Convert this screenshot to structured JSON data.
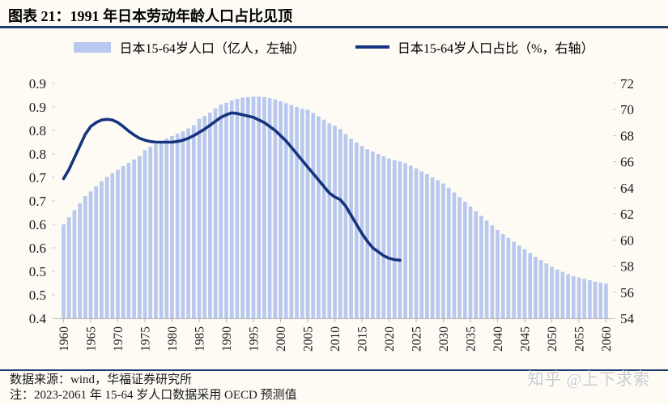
{
  "header": {
    "title": "图表 21：1991 年日本劳动年龄人口占比见顶"
  },
  "legend": [
    {
      "series": "bars",
      "label": "日本15-64岁人口（亿人，左轴）"
    },
    {
      "series": "line",
      "label": "日本15-64岁人口占比（%，右轴）"
    }
  ],
  "footer": {
    "source": "数据来源：wind，华福证券研究所",
    "note": "注：2023-2061 年 15-64 岁人口数据采用 OECD 预测值",
    "watermark": "知乎 @上下求索"
  },
  "colors": {
    "bar": "#b9c8ee",
    "line": "#16357e",
    "rule": "#1d3c6f",
    "axis": "#b3b3b3",
    "tick_text": "#1a1a1a",
    "watermark": "#c9c9c9"
  },
  "chart_data": {
    "type": "bar",
    "title": "1991 年日本劳动年龄人口占比见顶",
    "xlabel": "",
    "ylabel_left": "日本15-64岁人口（亿人）",
    "ylabel_right": "日本15-64岁人口占比（%）",
    "grid": false,
    "legend_position": "top-center",
    "x_ticks": [
      1960,
      1965,
      1970,
      1975,
      1980,
      1985,
      1990,
      1995,
      2000,
      2005,
      2010,
      2015,
      2020,
      2025,
      2030,
      2035,
      2040,
      2045,
      2050,
      2055,
      2060
    ],
    "left_axis": {
      "min": 0.4,
      "max": 0.9,
      "tick_step": 0.05,
      "tick_values": [
        0.9,
        0.85,
        0.8,
        0.75,
        0.7,
        0.65,
        0.6,
        0.55,
        0.5,
        0.45,
        0.4
      ],
      "tick_labels": [
        "0.9",
        "0.9",
        "0.8",
        "0.8",
        "0.7",
        "0.7",
        "0.6",
        "0.6",
        "0.5",
        "0.5",
        "0.4"
      ]
    },
    "right_axis": {
      "min": 54,
      "max": 72,
      "tick_step": 2,
      "tick_values": [
        72,
        70,
        68,
        66,
        64,
        62,
        60,
        58,
        56,
        54
      ],
      "tick_labels": [
        "72",
        "70",
        "68",
        "66",
        "64",
        "62",
        "60",
        "58",
        "56",
        "54"
      ]
    },
    "series": [
      {
        "name": "日本15-64岁人口（亿人，左轴）",
        "type": "bar",
        "axis": "left",
        "x_start": 1960,
        "x_end": 2060,
        "values": [
          0.6,
          0.615,
          0.63,
          0.645,
          0.66,
          0.67,
          0.681,
          0.692,
          0.701,
          0.709,
          0.716,
          0.724,
          0.731,
          0.738,
          0.745,
          0.758,
          0.765,
          0.771,
          0.777,
          0.783,
          0.788,
          0.793,
          0.798,
          0.804,
          0.811,
          0.825,
          0.831,
          0.838,
          0.847,
          0.855,
          0.859,
          0.864,
          0.867,
          0.87,
          0.871,
          0.872,
          0.872,
          0.871,
          0.869,
          0.866,
          0.862,
          0.858,
          0.854,
          0.85,
          0.846,
          0.844,
          0.837,
          0.83,
          0.823,
          0.815,
          0.81,
          0.803,
          0.792,
          0.782,
          0.774,
          0.767,
          0.76,
          0.755,
          0.75,
          0.745,
          0.74,
          0.737,
          0.734,
          0.73,
          0.725,
          0.719,
          0.713,
          0.707,
          0.7,
          0.694,
          0.687,
          0.678,
          0.668,
          0.658,
          0.648,
          0.638,
          0.628,
          0.618,
          0.608,
          0.598,
          0.588,
          0.579,
          0.571,
          0.563,
          0.555,
          0.547,
          0.539,
          0.531,
          0.524,
          0.517,
          0.51,
          0.504,
          0.499,
          0.494,
          0.49,
          0.487,
          0.484,
          0.481,
          0.478,
          0.476,
          0.474
        ]
      },
      {
        "name": "日本15-64岁人口占比（%，右轴）",
        "type": "line",
        "axis": "right",
        "x_start": 1960,
        "x_end": 2022,
        "values": [
          64.7,
          65.4,
          66.3,
          67.2,
          68.1,
          68.7,
          69.0,
          69.2,
          69.25,
          69.2,
          69.0,
          68.7,
          68.35,
          68.05,
          67.8,
          67.65,
          67.55,
          67.5,
          67.5,
          67.5,
          67.5,
          67.55,
          67.65,
          67.8,
          68.0,
          68.25,
          68.5,
          68.8,
          69.1,
          69.4,
          69.6,
          69.75,
          69.7,
          69.6,
          69.5,
          69.4,
          69.2,
          69.0,
          68.7,
          68.4,
          68.0,
          67.6,
          67.1,
          66.6,
          66.1,
          65.6,
          65.1,
          64.6,
          64.1,
          63.6,
          63.3,
          63.1,
          62.6,
          61.9,
          61.2,
          60.5,
          59.9,
          59.4,
          59.1,
          58.8,
          58.6,
          58.5,
          58.45
        ]
      }
    ]
  }
}
